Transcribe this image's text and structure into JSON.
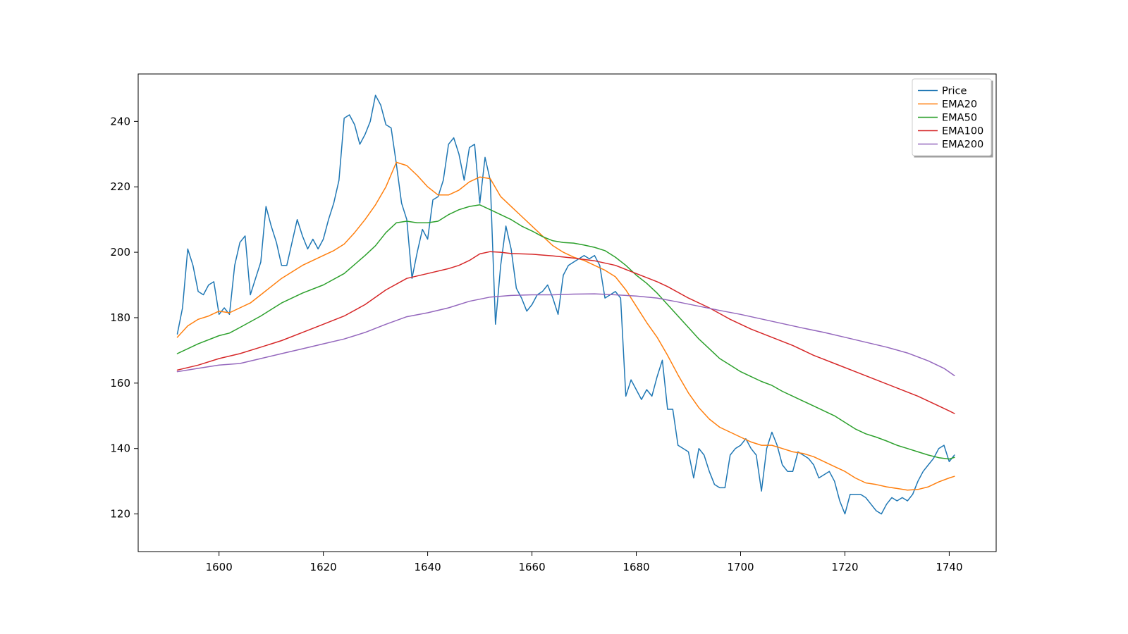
{
  "figure": {
    "background": "#ffffff",
    "plot_border_color": "#000000"
  },
  "chart_data": {
    "type": "line",
    "title": "",
    "xlabel": "",
    "ylabel": "",
    "grid": false,
    "legend_position": "upper right",
    "xlim": [
      1584.5,
      1749
    ],
    "ylim": [
      108.5,
      254.5
    ],
    "x_ticks": [
      1600,
      1620,
      1640,
      1660,
      1680,
      1700,
      1720,
      1740
    ],
    "y_ticks": [
      120,
      140,
      160,
      180,
      200,
      220,
      240
    ],
    "legend_entries": [
      "Price",
      "EMA20",
      "EMA50",
      "EMA100",
      "EMA200"
    ],
    "series": [
      {
        "name": "Price",
        "color": "#1f77b4",
        "x_start": 1592,
        "x_step": 1,
        "values": [
          175,
          183,
          201,
          196,
          188,
          187,
          190,
          191,
          181,
          183,
          181,
          196,
          203,
          205,
          187,
          192,
          197,
          214,
          208,
          203,
          196,
          196,
          203,
          210,
          205,
          201,
          204,
          201,
          204,
          210,
          215,
          222,
          241,
          242,
          239,
          233,
          236,
          240,
          248,
          245,
          239,
          238,
          227,
          215,
          210,
          192,
          200,
          207,
          204,
          216,
          217,
          222,
          233,
          235,
          230,
          222,
          232,
          233,
          215,
          229,
          222,
          178,
          196,
          208,
          201,
          189,
          186,
          182,
          184,
          187,
          188,
          190,
          186,
          181,
          193,
          196,
          197,
          198,
          199,
          198,
          199,
          196,
          186,
          187,
          188,
          186,
          156,
          161,
          158,
          155,
          158,
          156,
          162,
          167,
          152,
          152,
          141,
          140,
          139,
          131,
          140,
          138,
          133,
          129,
          128,
          128,
          138,
          140,
          141,
          143,
          140,
          138,
          127,
          140,
          145,
          141,
          135,
          133,
          133,
          139,
          138,
          137,
          135,
          131,
          132,
          133,
          130,
          124,
          120,
          126,
          126,
          126,
          125,
          123,
          121,
          120,
          123,
          125,
          124,
          125,
          124,
          126,
          130,
          133,
          135,
          137,
          140,
          141,
          136,
          138
        ]
      },
      {
        "name": "EMA20",
        "color": "#ff7f0e",
        "points": [
          [
            1592,
            174
          ],
          [
            1594,
            177.5
          ],
          [
            1596,
            179.5
          ],
          [
            1598,
            180.5
          ],
          [
            1600,
            182
          ],
          [
            1602,
            181.5
          ],
          [
            1604,
            183
          ],
          [
            1606,
            184.5
          ],
          [
            1608,
            187
          ],
          [
            1610,
            189.5
          ],
          [
            1612,
            192
          ],
          [
            1614,
            194
          ],
          [
            1616,
            196
          ],
          [
            1618,
            197.5
          ],
          [
            1620,
            199
          ],
          [
            1622,
            200.5
          ],
          [
            1624,
            202.5
          ],
          [
            1626,
            206
          ],
          [
            1628,
            210
          ],
          [
            1630,
            214.5
          ],
          [
            1632,
            220
          ],
          [
            1634,
            227.5
          ],
          [
            1636,
            226.5
          ],
          [
            1638,
            223.5
          ],
          [
            1640,
            220
          ],
          [
            1642,
            217.5
          ],
          [
            1644,
            217.5
          ],
          [
            1646,
            219
          ],
          [
            1648,
            221.5
          ],
          [
            1650,
            223
          ],
          [
            1652,
            222.5
          ],
          [
            1654,
            217
          ],
          [
            1656,
            214
          ],
          [
            1658,
            211
          ],
          [
            1660,
            208
          ],
          [
            1662,
            205
          ],
          [
            1664,
            202
          ],
          [
            1666,
            200
          ],
          [
            1668,
            198.5
          ],
          [
            1670,
            197.5
          ],
          [
            1672,
            196
          ],
          [
            1674,
            194.5
          ],
          [
            1676,
            192.5
          ],
          [
            1678,
            188.5
          ],
          [
            1680,
            183.5
          ],
          [
            1682,
            178.5
          ],
          [
            1684,
            174
          ],
          [
            1686,
            168.5
          ],
          [
            1688,
            162.5
          ],
          [
            1690,
            157
          ],
          [
            1692,
            152.5
          ],
          [
            1694,
            149
          ],
          [
            1696,
            146.5
          ],
          [
            1698,
            145
          ],
          [
            1700,
            143.5
          ],
          [
            1702,
            142
          ],
          [
            1704,
            141
          ],
          [
            1706,
            141
          ],
          [
            1708,
            140
          ],
          [
            1710,
            139
          ],
          [
            1712,
            138.5
          ],
          [
            1714,
            137.5
          ],
          [
            1716,
            136
          ],
          [
            1718,
            134.5
          ],
          [
            1720,
            133
          ],
          [
            1722,
            131
          ],
          [
            1724,
            129.5
          ],
          [
            1726,
            129
          ],
          [
            1728,
            128.3
          ],
          [
            1730,
            127.8
          ],
          [
            1732,
            127.3
          ],
          [
            1734,
            127.5
          ],
          [
            1736,
            128.3
          ],
          [
            1738,
            129.8
          ],
          [
            1740,
            131
          ],
          [
            1741,
            131.5
          ]
        ]
      },
      {
        "name": "EMA50",
        "color": "#2ca02c",
        "points": [
          [
            1592,
            169
          ],
          [
            1596,
            172
          ],
          [
            1600,
            174.5
          ],
          [
            1602,
            175.3
          ],
          [
            1604,
            177
          ],
          [
            1608,
            180.5
          ],
          [
            1612,
            184.5
          ],
          [
            1616,
            187.5
          ],
          [
            1620,
            190
          ],
          [
            1624,
            193.5
          ],
          [
            1628,
            199
          ],
          [
            1630,
            202
          ],
          [
            1632,
            206
          ],
          [
            1634,
            209
          ],
          [
            1636,
            209.5
          ],
          [
            1638,
            209
          ],
          [
            1640,
            209
          ],
          [
            1642,
            209.5
          ],
          [
            1644,
            211.5
          ],
          [
            1646,
            213
          ],
          [
            1648,
            214
          ],
          [
            1650,
            214.5
          ],
          [
            1652,
            213
          ],
          [
            1654,
            211.5
          ],
          [
            1656,
            210
          ],
          [
            1658,
            208
          ],
          [
            1660,
            206.5
          ],
          [
            1662,
            204.8
          ],
          [
            1664,
            203.5
          ],
          [
            1666,
            203
          ],
          [
            1668,
            202.8
          ],
          [
            1670,
            202.2
          ],
          [
            1672,
            201.5
          ],
          [
            1674,
            200.5
          ],
          [
            1676,
            198.5
          ],
          [
            1678,
            196
          ],
          [
            1680,
            193
          ],
          [
            1682,
            190.5
          ],
          [
            1684,
            187.5
          ],
          [
            1686,
            184
          ],
          [
            1688,
            180.5
          ],
          [
            1690,
            177
          ],
          [
            1692,
            173.5
          ],
          [
            1694,
            170.5
          ],
          [
            1696,
            167.5
          ],
          [
            1698,
            165.5
          ],
          [
            1700,
            163.5
          ],
          [
            1702,
            162
          ],
          [
            1704,
            160.5
          ],
          [
            1706,
            159.3
          ],
          [
            1708,
            157.5
          ],
          [
            1710,
            156
          ],
          [
            1712,
            154.5
          ],
          [
            1714,
            153
          ],
          [
            1716,
            151.5
          ],
          [
            1718,
            150
          ],
          [
            1720,
            148
          ],
          [
            1722,
            146
          ],
          [
            1724,
            144.5
          ],
          [
            1726,
            143.5
          ],
          [
            1728,
            142.3
          ],
          [
            1730,
            141
          ],
          [
            1732,
            140
          ],
          [
            1734,
            139
          ],
          [
            1736,
            138
          ],
          [
            1738,
            137.2
          ],
          [
            1740,
            136.8
          ],
          [
            1741,
            137.3
          ]
        ]
      },
      {
        "name": "EMA100",
        "color": "#d62728",
        "points": [
          [
            1592,
            164
          ],
          [
            1596,
            165.5
          ],
          [
            1600,
            167.5
          ],
          [
            1604,
            169
          ],
          [
            1608,
            171
          ],
          [
            1612,
            173
          ],
          [
            1616,
            175.5
          ],
          [
            1620,
            178
          ],
          [
            1624,
            180.5
          ],
          [
            1628,
            184
          ],
          [
            1632,
            188.5
          ],
          [
            1636,
            192
          ],
          [
            1640,
            193.5
          ],
          [
            1644,
            195
          ],
          [
            1646,
            196
          ],
          [
            1648,
            197.5
          ],
          [
            1650,
            199.5
          ],
          [
            1652,
            200.2
          ],
          [
            1654,
            200
          ],
          [
            1656,
            199.6
          ],
          [
            1660,
            199.4
          ],
          [
            1664,
            198.9
          ],
          [
            1668,
            198.2
          ],
          [
            1672,
            197.4
          ],
          [
            1676,
            196
          ],
          [
            1680,
            193.5
          ],
          [
            1684,
            191
          ],
          [
            1686,
            189.5
          ],
          [
            1690,
            186
          ],
          [
            1694,
            183
          ],
          [
            1698,
            179.5
          ],
          [
            1702,
            176.5
          ],
          [
            1706,
            174
          ],
          [
            1710,
            171.5
          ],
          [
            1714,
            168.5
          ],
          [
            1718,
            166
          ],
          [
            1722,
            163.5
          ],
          [
            1726,
            161
          ],
          [
            1730,
            158.5
          ],
          [
            1734,
            156
          ],
          [
            1738,
            153
          ],
          [
            1740,
            151.5
          ],
          [
            1741,
            150.7
          ]
        ]
      },
      {
        "name": "EMA200",
        "color": "#9467bd",
        "points": [
          [
            1592,
            163.5
          ],
          [
            1596,
            164.5
          ],
          [
            1600,
            165.5
          ],
          [
            1604,
            166
          ],
          [
            1608,
            167.5
          ],
          [
            1612,
            169
          ],
          [
            1616,
            170.5
          ],
          [
            1620,
            172
          ],
          [
            1624,
            173.5
          ],
          [
            1628,
            175.5
          ],
          [
            1632,
            178
          ],
          [
            1636,
            180.3
          ],
          [
            1640,
            181.5
          ],
          [
            1644,
            183
          ],
          [
            1648,
            185
          ],
          [
            1652,
            186.3
          ],
          [
            1656,
            186.8
          ],
          [
            1660,
            187
          ],
          [
            1664,
            187
          ],
          [
            1668,
            187.2
          ],
          [
            1672,
            187.3
          ],
          [
            1676,
            187
          ],
          [
            1680,
            186.6
          ],
          [
            1684,
            186
          ],
          [
            1688,
            184.8
          ],
          [
            1692,
            183.5
          ],
          [
            1696,
            182.2
          ],
          [
            1700,
            181
          ],
          [
            1704,
            179.6
          ],
          [
            1708,
            178.2
          ],
          [
            1712,
            176.8
          ],
          [
            1716,
            175.5
          ],
          [
            1720,
            174
          ],
          [
            1724,
            172.5
          ],
          [
            1728,
            171
          ],
          [
            1732,
            169.2
          ],
          [
            1736,
            166.8
          ],
          [
            1739,
            164.5
          ],
          [
            1741,
            162.3
          ]
        ]
      }
    ]
  }
}
